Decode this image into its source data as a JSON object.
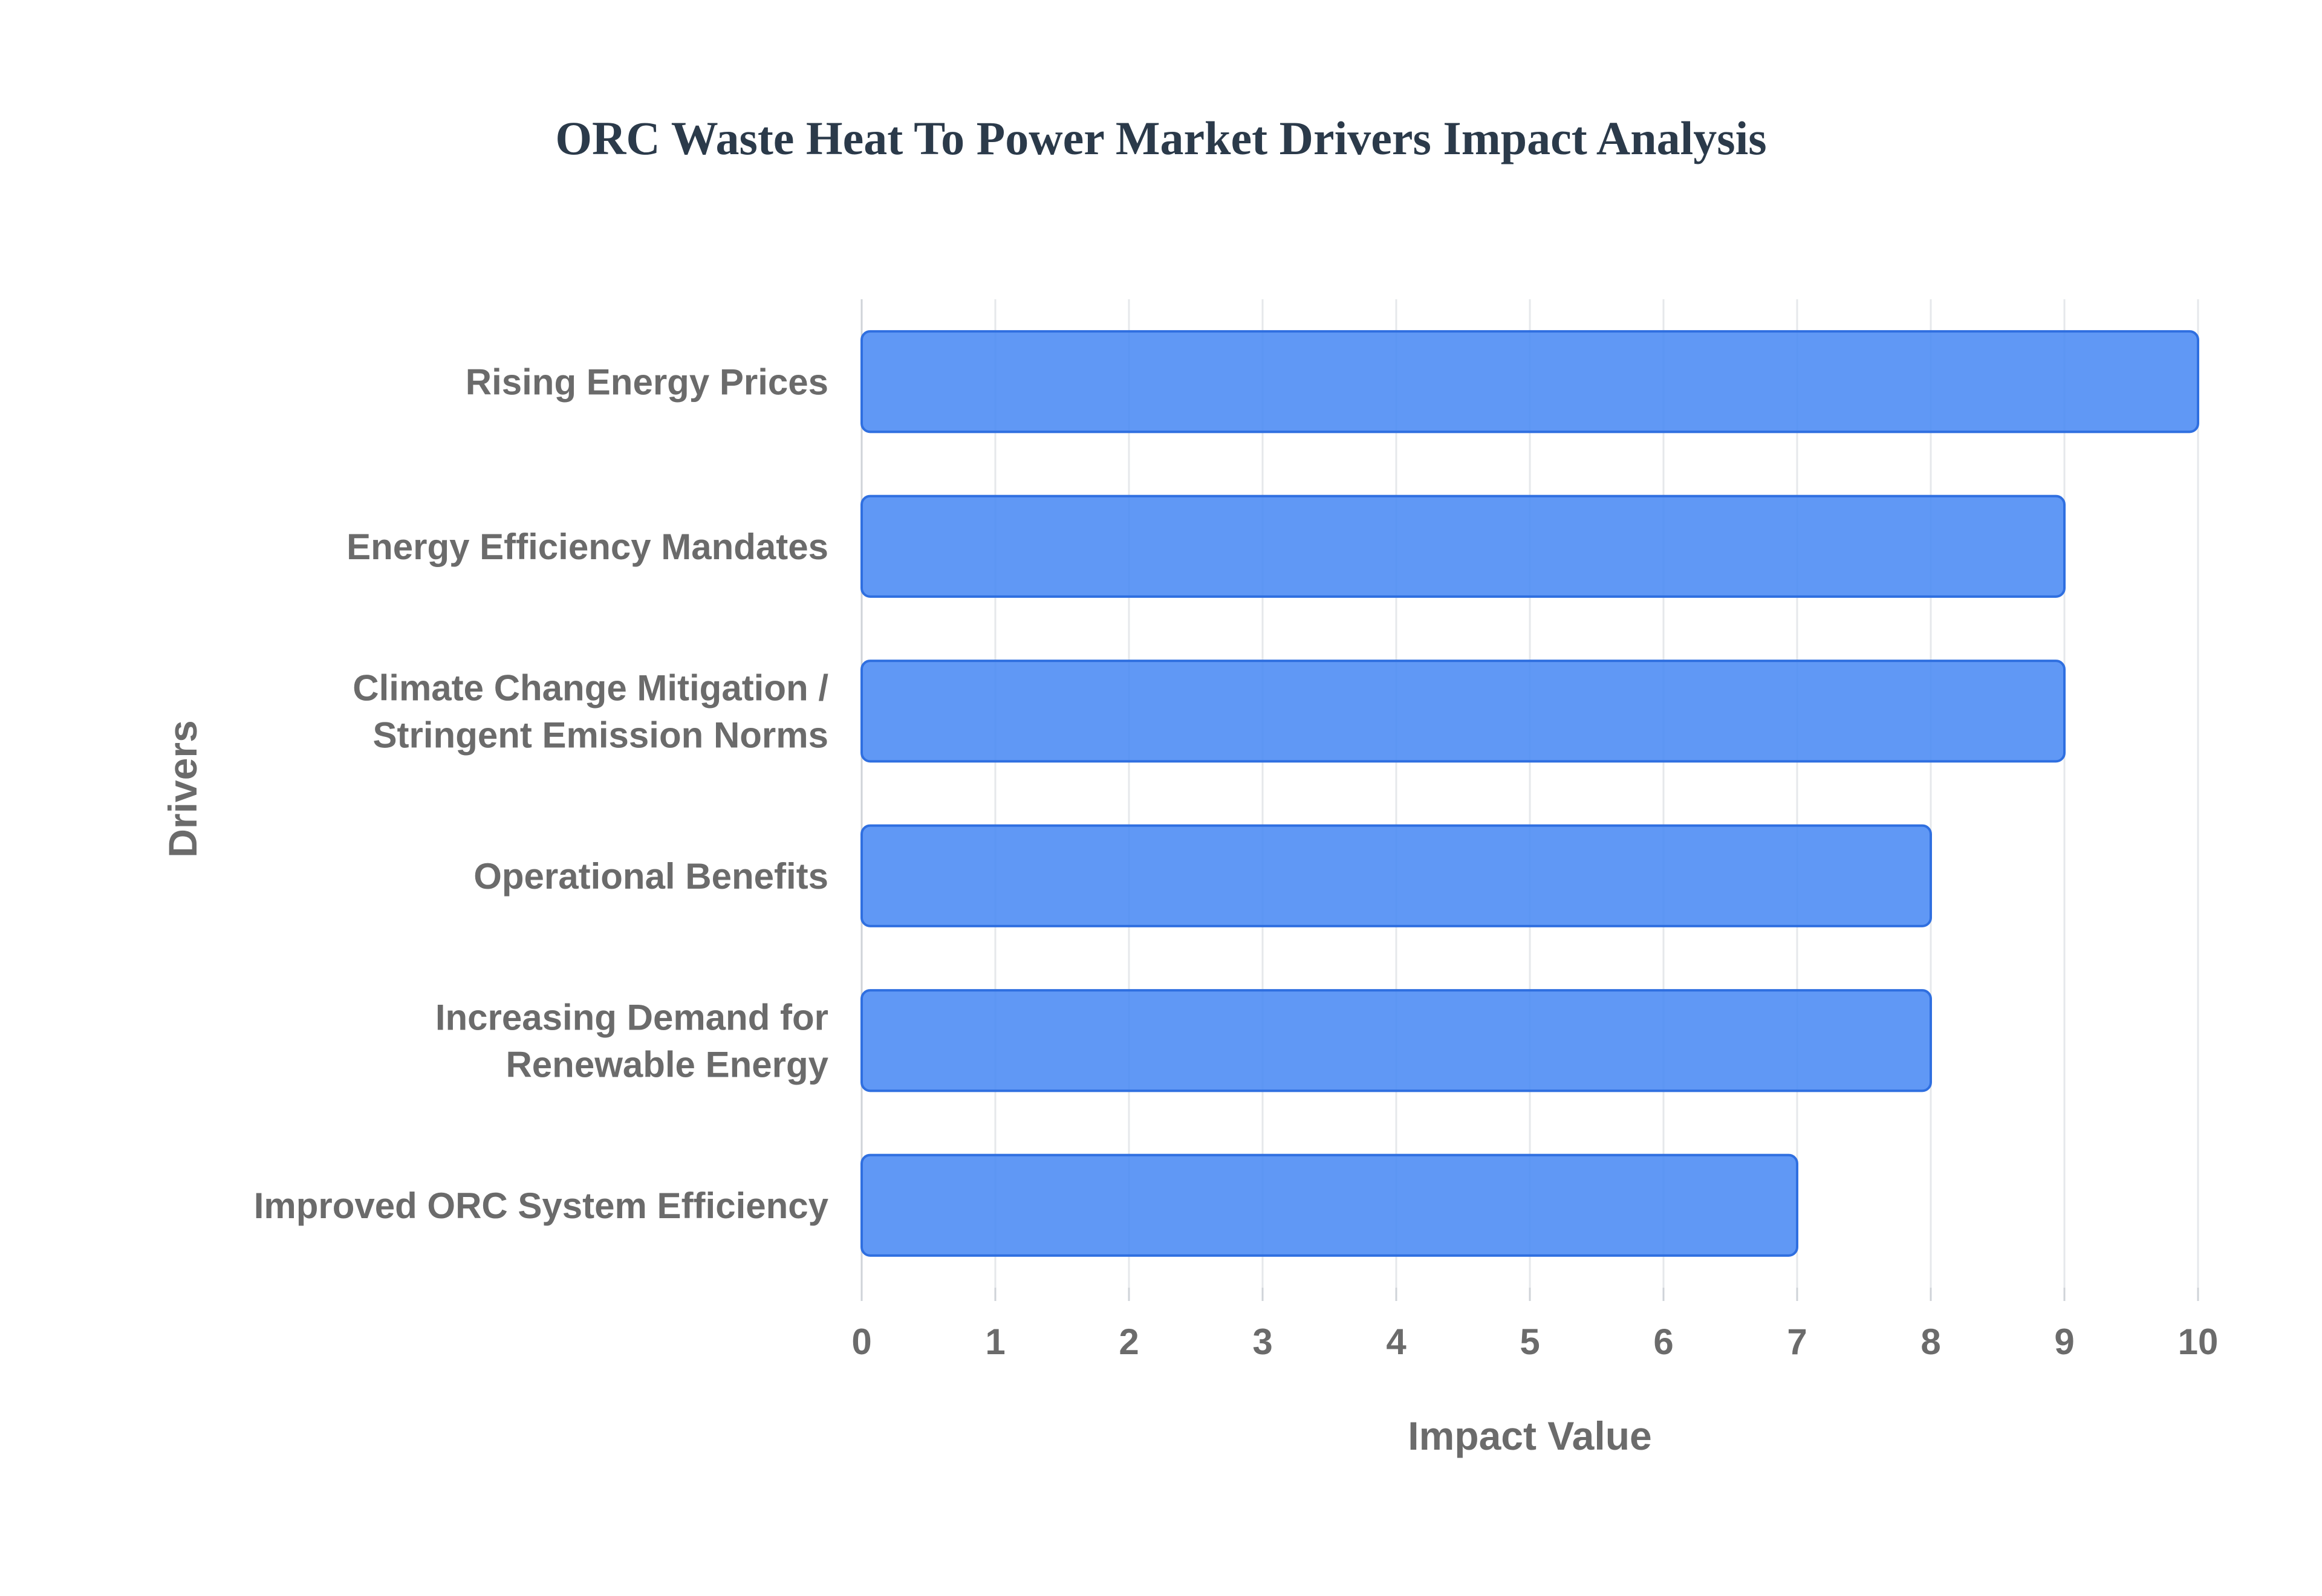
{
  "chart_data": {
    "type": "bar",
    "orientation": "horizontal",
    "title": "ORC Waste Heat To Power Market Drivers Impact Analysis",
    "xlabel": "Impact Value",
    "ylabel": "Drivers",
    "categories": [
      [
        "Rising Energy Prices"
      ],
      [
        "Energy Efficiency Mandates"
      ],
      [
        "Climate Change Mitigation /",
        "Stringent Emission Norms"
      ],
      [
        "Operational Benefits"
      ],
      [
        "Increasing Demand for",
        "Renewable Energy"
      ],
      [
        "Improved ORC System Efficiency"
      ]
    ],
    "values": [
      10,
      9,
      9,
      8,
      8,
      7
    ],
    "xlim": [
      0,
      10
    ],
    "xticks": [
      "0",
      "1",
      "2",
      "3",
      "4",
      "5",
      "6",
      "7",
      "8",
      "9",
      "10"
    ],
    "grid": true,
    "legend": "none",
    "bar_color": "#4a8af4",
    "bar_edge_color": "#2f6fe0"
  }
}
